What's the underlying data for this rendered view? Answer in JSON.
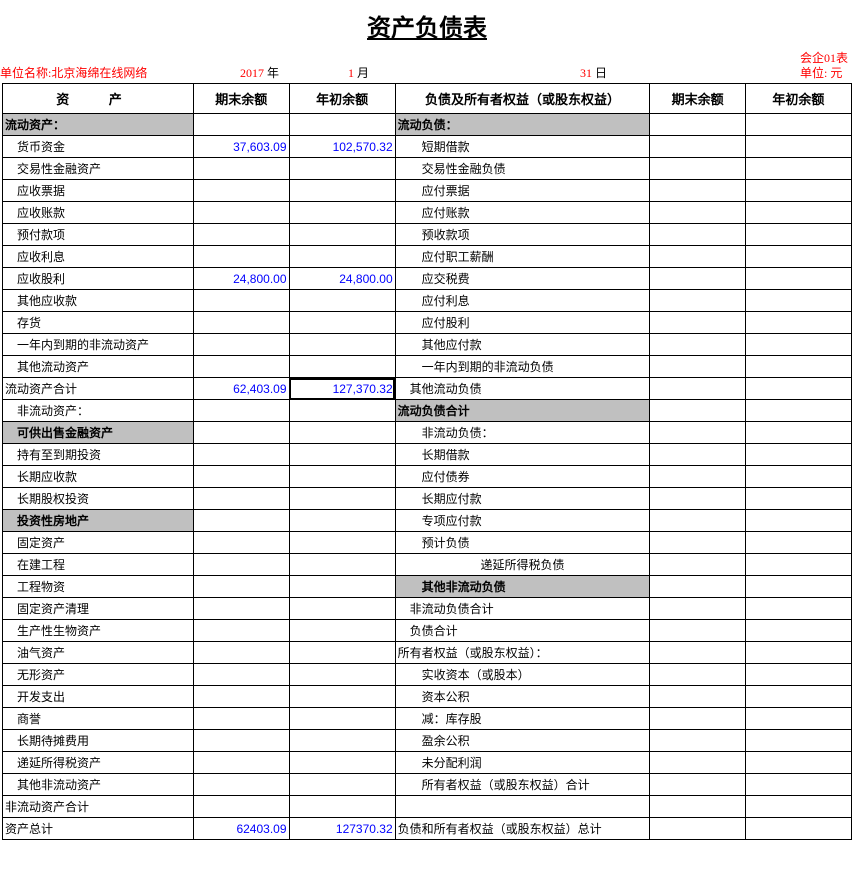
{
  "title": "资产负债表",
  "meta": {
    "org_label": "单位名称:",
    "org_name": "北京海绵在线网络",
    "year": "2017",
    "year_lbl": "年",
    "month": "1",
    "month_lbl": "月",
    "day": "31",
    "day_lbl": "日",
    "form_no": "会企01表",
    "unit": "单位: 元"
  },
  "headers": {
    "asset": "资  产",
    "end": "期末余额",
    "begin": "年初余额",
    "liab": "负债及所有者权益（或股东权益）",
    "end2": "期末余额",
    "begin2": "年初余额"
  },
  "rows": [
    {
      "a": "流动资产：",
      "a_cls": "shade",
      "e1": "",
      "b1": "",
      "l": "流动负债：",
      "l_cls": "shade",
      "e2": "",
      "b2": ""
    },
    {
      "a": "货币资金",
      "a_cls": "indent1",
      "e1": "37,603.09",
      "b1": "102,570.32",
      "l": "短期借款",
      "l_cls": "indent2",
      "e2": "",
      "b2": ""
    },
    {
      "a": "交易性金融资产",
      "a_cls": "indent1",
      "e1": "",
      "b1": "",
      "l": "交易性金融负债",
      "l_cls": "indent2",
      "e2": "",
      "b2": ""
    },
    {
      "a": "应收票据",
      "a_cls": "indent1",
      "e1": "",
      "b1": "",
      "l": "应付票据",
      "l_cls": "indent2",
      "e2": "",
      "b2": ""
    },
    {
      "a": "应收账款",
      "a_cls": "indent1",
      "e1": "",
      "b1": "",
      "l": "应付账款",
      "l_cls": "indent2",
      "e2": "",
      "b2": ""
    },
    {
      "a": "预付款项",
      "a_cls": "indent1",
      "e1": "",
      "b1": "",
      "l": "预收款项",
      "l_cls": "indent2",
      "e2": "",
      "b2": ""
    },
    {
      "a": "应收利息",
      "a_cls": "indent1",
      "e1": "",
      "b1": "",
      "l": "应付职工薪酬",
      "l_cls": "indent2",
      "e2": "",
      "b2": ""
    },
    {
      "a": "应收股利",
      "a_cls": "indent1",
      "e1": "24,800.00",
      "b1": "24,800.00",
      "l": "应交税费",
      "l_cls": "indent2",
      "e2": "",
      "b2": ""
    },
    {
      "a": "其他应收款",
      "a_cls": "indent1",
      "e1": "",
      "b1": "",
      "l": "应付利息",
      "l_cls": "indent2",
      "e2": "",
      "b2": ""
    },
    {
      "a": "存货",
      "a_cls": "indent1",
      "e1": "",
      "b1": "",
      "l": "应付股利",
      "l_cls": "indent2",
      "e2": "",
      "b2": ""
    },
    {
      "a": "一年内到期的非流动资产",
      "a_cls": "indent1",
      "e1": "",
      "b1": "",
      "l": "其他应付款",
      "l_cls": "indent2",
      "e2": "",
      "b2": ""
    },
    {
      "a": "其他流动资产",
      "a_cls": "indent1",
      "e1": "",
      "b1": "",
      "l": "一年内到期的非流动负债",
      "l_cls": "indent2",
      "e2": "",
      "b2": ""
    },
    {
      "a": "流动资产合计",
      "a_cls": "",
      "e1": "62,403.09",
      "b1": "127,370.32",
      "b1_sel": true,
      "l": "其他流动负债",
      "l_cls": "indent1",
      "e2": "",
      "b2": ""
    },
    {
      "a": "非流动资产：",
      "a_cls": "indent1",
      "e1": "",
      "b1": "",
      "l": "流动负债合计",
      "l_cls": "shade",
      "e2": "",
      "b2": ""
    },
    {
      "a": "可供出售金融资产",
      "a_cls": "shade indent1",
      "e1": "",
      "b1": "",
      "l": "非流动负债：",
      "l_cls": "indent2",
      "e2": "",
      "b2": ""
    },
    {
      "a": "持有至到期投资",
      "a_cls": "indent1",
      "e1": "",
      "b1": "",
      "l": "长期借款",
      "l_cls": "indent2",
      "e2": "",
      "b2": ""
    },
    {
      "a": "长期应收款",
      "a_cls": "indent1",
      "e1": "",
      "b1": "",
      "l": "应付债券",
      "l_cls": "indent2",
      "e2": "",
      "b2": ""
    },
    {
      "a": "长期股权投资",
      "a_cls": "indent1",
      "e1": "",
      "b1": "",
      "l": "长期应付款",
      "l_cls": "indent2",
      "e2": "",
      "b2": ""
    },
    {
      "a": "投资性房地产",
      "a_cls": "shade indent1",
      "e1": "",
      "b1": "",
      "l": "专项应付款",
      "l_cls": "indent2",
      "e2": "",
      "b2": ""
    },
    {
      "a": "固定资产",
      "a_cls": "indent1",
      "e1": "",
      "b1": "",
      "l": "预计负债",
      "l_cls": "indent2",
      "e2": "",
      "b2": ""
    },
    {
      "a": "在建工程",
      "a_cls": "indent1",
      "e1": "",
      "b1": "",
      "l": "递延所得税负债",
      "l_cls": "",
      "l_center": true,
      "e2": "",
      "b2": ""
    },
    {
      "a": "工程物资",
      "a_cls": "indent1",
      "e1": "",
      "b1": "",
      "l": "其他非流动负债",
      "l_cls": "shade indent2",
      "e2": "",
      "b2": ""
    },
    {
      "a": "固定资产清理",
      "a_cls": "indent1",
      "e1": "",
      "b1": "",
      "l": "非流动负债合计",
      "l_cls": "indent1",
      "e2": "",
      "b2": ""
    },
    {
      "a": "生产性生物资产",
      "a_cls": "indent1",
      "e1": "",
      "b1": "",
      "l": "负债合计",
      "l_cls": "indent1",
      "e2": "",
      "b2": ""
    },
    {
      "a": "油气资产",
      "a_cls": "indent1",
      "e1": "",
      "b1": "",
      "l": "所有者权益（或股东权益）：",
      "l_cls": "",
      "e2": "",
      "b2": ""
    },
    {
      "a": "无形资产",
      "a_cls": "indent1",
      "e1": "",
      "b1": "",
      "l": "实收资本（或股本）",
      "l_cls": "indent2",
      "e2": "",
      "b2": ""
    },
    {
      "a": "开发支出",
      "a_cls": "indent1",
      "e1": "",
      "b1": "",
      "l": "资本公积",
      "l_cls": "indent2",
      "e2": "",
      "b2": ""
    },
    {
      "a": "商誉",
      "a_cls": "indent1",
      "e1": "",
      "b1": "",
      "l": "减：库存股",
      "l_cls": "indent2",
      "e2": "",
      "b2": ""
    },
    {
      "a": "长期待摊费用",
      "a_cls": "indent1",
      "e1": "",
      "b1": "",
      "l": "盈余公积",
      "l_cls": "indent2",
      "e2": "",
      "b2": ""
    },
    {
      "a": "递延所得税资产",
      "a_cls": "indent1",
      "e1": "",
      "b1": "",
      "l": "未分配利润",
      "l_cls": "indent2",
      "e2": "",
      "b2": ""
    },
    {
      "a": "其他非流动资产",
      "a_cls": "indent1",
      "e1": "",
      "b1": "",
      "l": "所有者权益（或股东权益）合计",
      "l_cls": "indent2",
      "e2": "",
      "b2": ""
    },
    {
      "a": "非流动资产合计",
      "a_cls": "",
      "e1": "",
      "b1": "",
      "l": "",
      "l_cls": "",
      "e2": "",
      "b2": ""
    },
    {
      "a": "资产总计",
      "a_cls": "",
      "e1": "62403.09",
      "b1": "127370.32",
      "l": "负债和所有者权益（或股东权益）总计",
      "l_cls": "",
      "e2": "",
      "b2": ""
    }
  ]
}
